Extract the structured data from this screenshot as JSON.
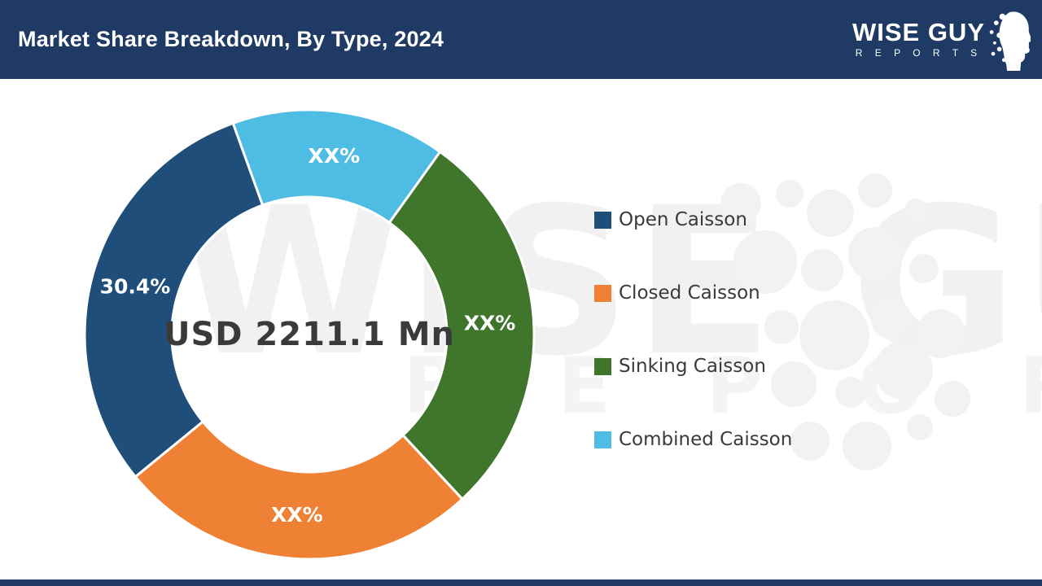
{
  "header": {
    "title": "Market Share Breakdown, By Type, 2024",
    "logo": {
      "line1": "WISE GUY",
      "line2": "R E P O R T S"
    }
  },
  "watermark": {
    "line1": "WISE GUY",
    "line2": "R E P O R T S"
  },
  "chart_data": {
    "type": "pie",
    "donut": true,
    "title": "Market Share Breakdown, By Type, 2024",
    "center_label": "USD 2211.1 Mn",
    "start_angle_deg": 230.7,
    "draw_order_clockwise": [
      "Open Caisson",
      "Combined Caisson",
      "Sinking Caisson",
      "Closed Caisson"
    ],
    "legend_position": "right",
    "colors": {
      "header_bar": "#1f3a64",
      "slice_gap": "#ffffff",
      "slice_label_text": "#ffffff",
      "center_text": "#3a3a3a",
      "legend_text": "#3a3a3a"
    },
    "segments": [
      {
        "name": "Open Caisson",
        "value_pct": 30.4,
        "slice_label": "30.4%",
        "color": "#1f4e7a"
      },
      {
        "name": "Closed Caisson",
        "value_pct": 26.0,
        "slice_label": "XX%",
        "color": "#ee8133"
      },
      {
        "name": "Sinking Caisson",
        "value_pct": 28.2,
        "slice_label": "XX%",
        "color": "#40752c"
      },
      {
        "name": "Combined Caisson",
        "value_pct": 15.4,
        "slice_label": "XX%",
        "color": "#4fbce3"
      }
    ]
  }
}
